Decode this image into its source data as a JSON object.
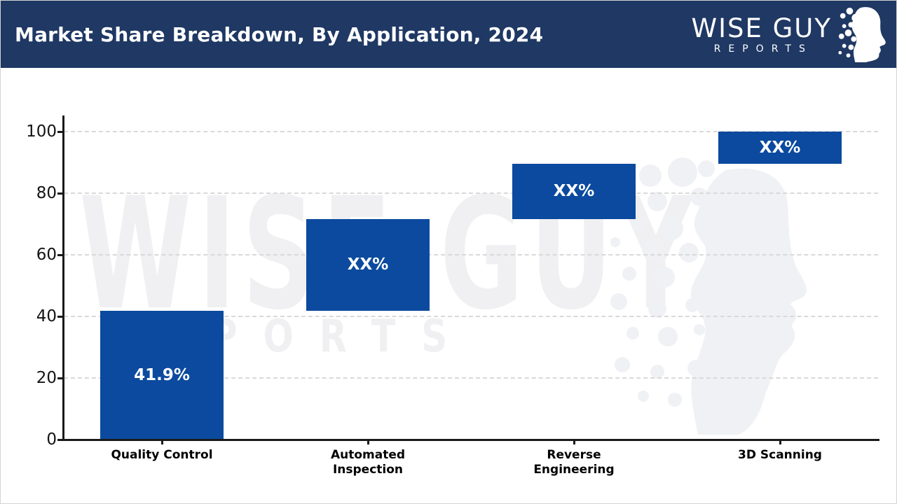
{
  "header": {
    "title": "Market Share Breakdown, By Application, 2024",
    "bg_color": "#1f3864",
    "logo": {
      "line1": "WISE GUY",
      "line2": "REPORTS"
    }
  },
  "watermark": {
    "line1": "WISE GUY",
    "line2": "REPORTS"
  },
  "chart_data": {
    "type": "bar",
    "subtype": "waterfall",
    "title": "Market Share Breakdown, By Application, 2024",
    "categories": [
      "Quality Control",
      "Automated Inspection",
      "Reverse Engineering",
      "3D Scanning"
    ],
    "category_label_lines": [
      [
        "Quality Control"
      ],
      [
        "Automated",
        "Inspection"
      ],
      [
        "Reverse",
        "Engineering"
      ],
      [
        "3D Scanning"
      ]
    ],
    "segments": [
      {
        "category": "Quality Control",
        "start": 0,
        "end": 41.9,
        "value_est": 41.9,
        "display_label": "41.9%"
      },
      {
        "category": "Automated Inspection",
        "start": 41.9,
        "end": 71.7,
        "value_est": 29.8,
        "display_label": "XX%"
      },
      {
        "category": "Reverse Engineering",
        "start": 71.7,
        "end": 89.6,
        "value_est": 17.9,
        "display_label": "XX%"
      },
      {
        "category": "3D Scanning",
        "start": 89.6,
        "end": 100,
        "value_est": 10.4,
        "display_label": "XX%"
      }
    ],
    "xlabel": "",
    "ylabel": "",
    "ylim": [
      0,
      100
    ],
    "yticks": [
      0,
      20,
      40,
      60,
      80,
      100
    ],
    "grid": "horizontal dashed",
    "legend": "none",
    "bar_color": "#0b4a9e",
    "bar_label_color": "#ffffff",
    "grid_color": "#d9d9d9",
    "axis_color": "#1a1a1a",
    "watermark_color": "#f0f1f4"
  }
}
